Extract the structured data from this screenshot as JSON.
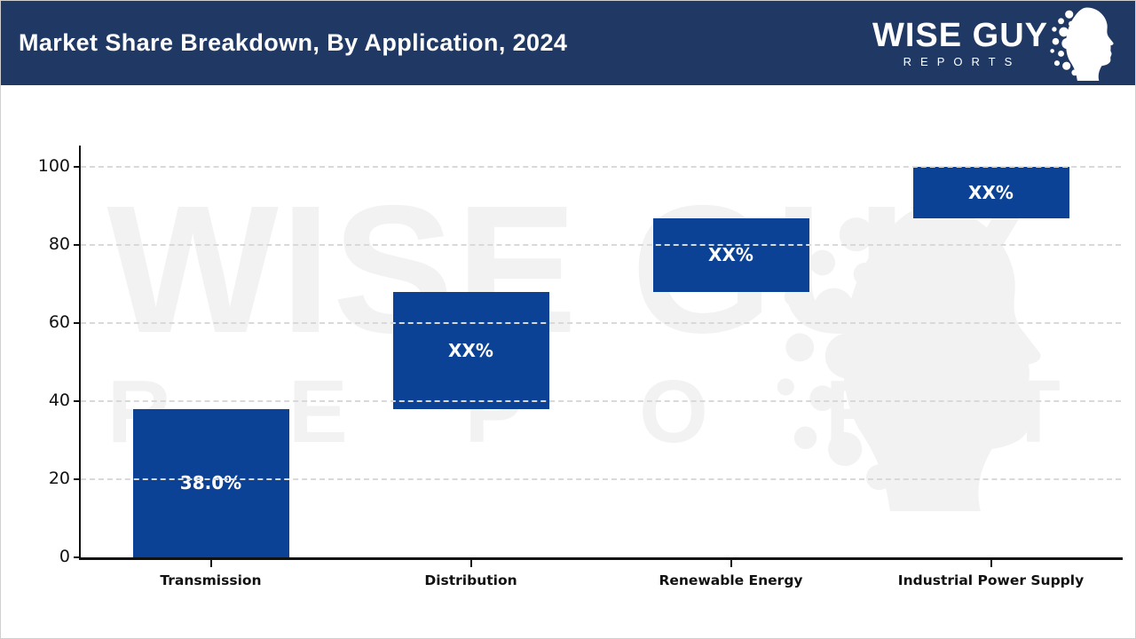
{
  "header": {
    "title": "Market Share Breakdown, By Application, 2024",
    "bg_color": "#1f3864",
    "logo": {
      "line1": "WISE GUY",
      "line2": "REPORTS",
      "face_icon": "dotted-head-profile"
    }
  },
  "watermark": {
    "line1": "WISE GUY",
    "line2": "R E P O R T S",
    "color": "#f2f2f2"
  },
  "chart_data": {
    "type": "bar",
    "subtype": "waterfall",
    "title": "Market Share Breakdown, By Application, 2024",
    "categories": [
      "Transmission",
      "Distribution",
      "Renewable Energy",
      "Industrial Power Supply"
    ],
    "segments": [
      {
        "category": "Transmission",
        "start": 0,
        "end": 38,
        "label": "38.0%"
      },
      {
        "category": "Distribution",
        "start": 38,
        "end": 68,
        "label": "XX%"
      },
      {
        "category": "Renewable Energy",
        "start": 68,
        "end": 86.8,
        "label": "XX%"
      },
      {
        "category": "Industrial Power Supply",
        "start": 86.8,
        "end": 100,
        "label": "XX%"
      }
    ],
    "yticks": [
      0,
      20,
      40,
      60,
      80,
      100
    ],
    "ylim": [
      0,
      104
    ],
    "xlabel": "",
    "ylabel": "",
    "bar_color": "#0b4296",
    "bar_label_color": "#ffffff",
    "grid": true,
    "gridline_style": "dashed",
    "legend": "none"
  }
}
